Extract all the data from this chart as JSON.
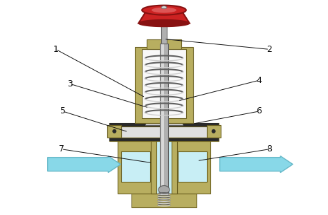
{
  "background": "#ffffff",
  "olive": "#b8ae60",
  "olive_dark": "#6b6020",
  "olive_mid": "#8a8040",
  "gray_light": "#d0d0d0",
  "gray_med": "#a8a8a8",
  "gray_dark": "#606060",
  "gray_stem": "#b0b0b0",
  "red_knob": "#cc2222",
  "red_knob_dark": "#881111",
  "red_knob_light": "#dd5555",
  "light_blue": "#c8eef5",
  "arrow_blue": "#88d8e8",
  "arrow_blue_dark": "#66b8c8",
  "black": "#111111",
  "white": "#f8f8f8",
  "dark_seal": "#2a2a2a",
  "spring_color": "#909090",
  "label_fontsize": 9
}
